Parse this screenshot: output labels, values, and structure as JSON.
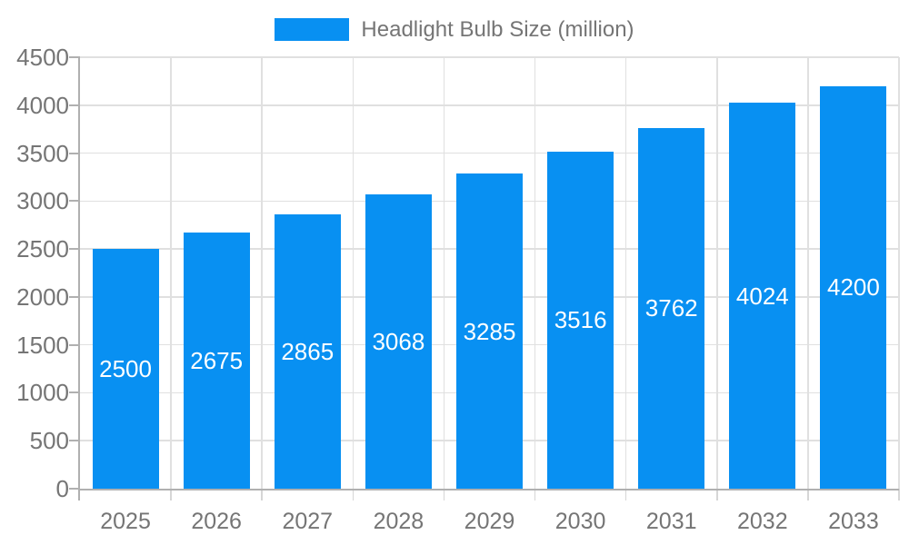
{
  "legend": {
    "label": "Headlight Bulb Size (million)"
  },
  "chart_data": {
    "type": "bar",
    "title": "Headlight Bulb Size (million)",
    "categories": [
      "2025",
      "2026",
      "2027",
      "2028",
      "2029",
      "2030",
      "2031",
      "2032",
      "2033"
    ],
    "values": [
      2500,
      2675,
      2865,
      3068,
      3285,
      3516,
      3762,
      4024,
      4200
    ],
    "value_labels": [
      "2500",
      "2675",
      "2865",
      "3068",
      "3285",
      "3516",
      "3762",
      "4024",
      "4200"
    ],
    "xlabel": "",
    "ylabel": "",
    "ylim": [
      0,
      4500
    ],
    "ytick_step": 500,
    "ytick_labels": [
      "0",
      "500",
      "1000",
      "1500",
      "2000",
      "2500",
      "3000",
      "3500",
      "4000",
      "4500"
    ],
    "grid": true,
    "legend_position": "top-center",
    "value_label_position": "inside-center"
  },
  "colors": {
    "bar": "#0890f2",
    "value_label": "#ffffff",
    "axis_text": "#757575",
    "legend_text": "#757575",
    "grid_line": "#e0e0e0",
    "axis_line": "#b0b0b0",
    "x_tick": "#d6d6d6",
    "background": "#ffffff"
  }
}
